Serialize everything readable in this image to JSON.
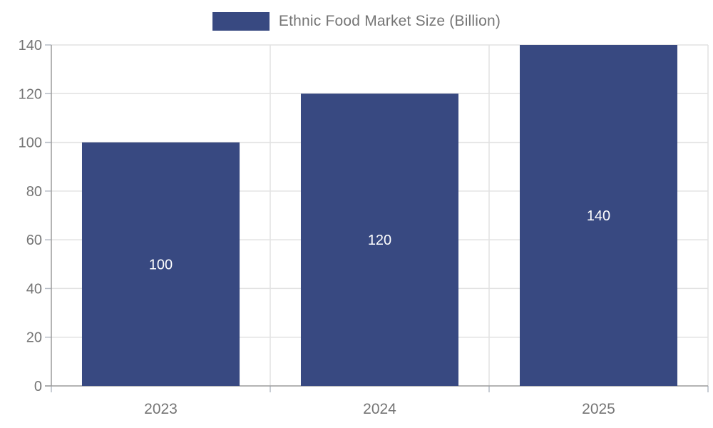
{
  "chart_data": {
    "type": "bar",
    "title": "Ethnic Food Market Size (Billion)",
    "legend": {
      "label": "Ethnic Food Market Size (Billion)",
      "position": "top-center"
    },
    "categories": [
      "2023",
      "2024",
      "2025"
    ],
    "values": [
      100,
      120,
      140
    ],
    "data_labels": [
      "100",
      "120",
      "140"
    ],
    "xlabel": "",
    "ylabel": "",
    "ylim": [
      0,
      140
    ],
    "yticks": [
      0,
      20,
      40,
      60,
      80,
      100,
      120,
      140
    ],
    "grid": true,
    "colors": {
      "bar": "#384981",
      "bar_label": "#ffffff",
      "grid": "#e2e2e2",
      "axis": "#9b9b9b",
      "tick": "#b6bcc6",
      "tick_label": "#757575",
      "legend_text": "#757575",
      "background": "#ffffff"
    }
  }
}
